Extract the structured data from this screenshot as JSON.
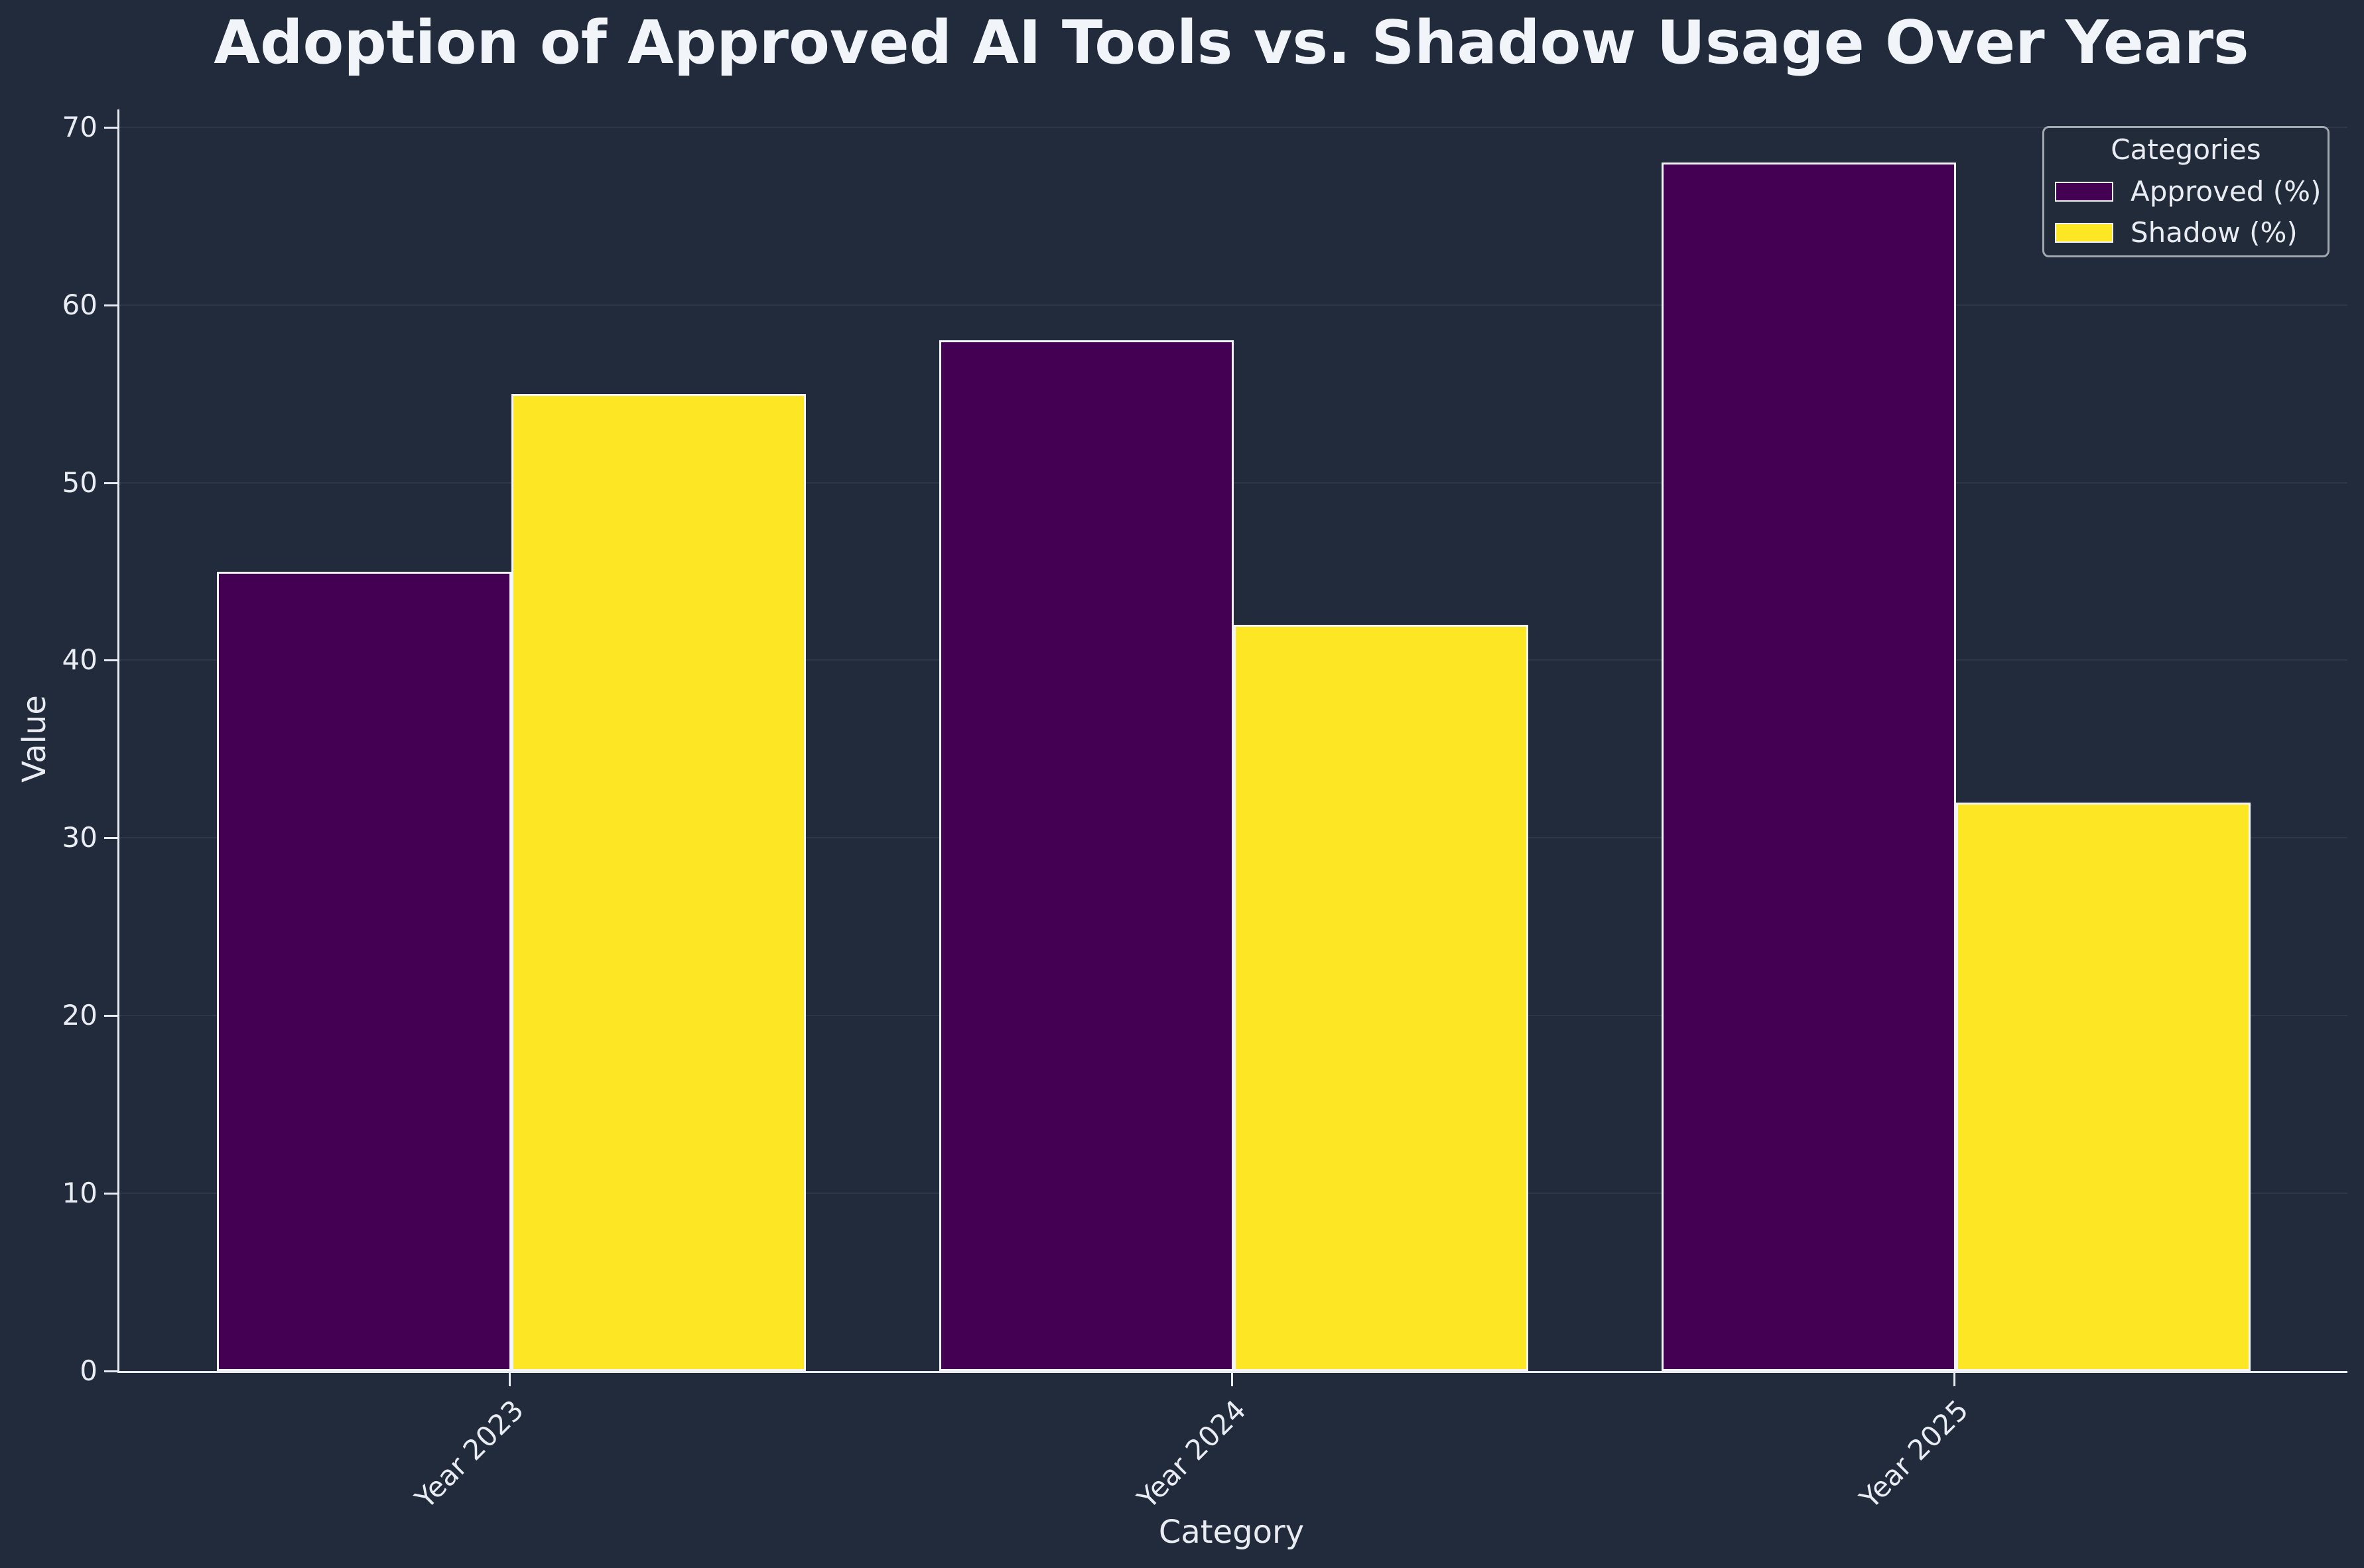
{
  "figure": {
    "background_color": "#212B3B",
    "text_color": "#E9ECF2",
    "spine_color": "#E9ECF2",
    "bar_edge_color": "#F2F4F8"
  },
  "chart_data": {
    "type": "bar",
    "title": "Adoption of Approved AI Tools vs. Shadow Usage Over Years",
    "xlabel": "Category",
    "ylabel": "Value",
    "categories": [
      "Year 2023",
      "Year 2024",
      "Year 2025"
    ],
    "series": [
      {
        "name": "Approved (%)",
        "color": "#440154",
        "values": [
          45,
          58,
          68
        ]
      },
      {
        "name": "Shadow (%)",
        "color": "#FDE725",
        "values": [
          55,
          42,
          32
        ]
      }
    ],
    "ylim": [
      0,
      71
    ],
    "yticks": [
      0,
      10,
      20,
      30,
      40,
      50,
      60,
      70
    ],
    "grid": true,
    "xtick_rotation": 45,
    "legend": {
      "title": "Categories",
      "position": "upper right"
    }
  }
}
